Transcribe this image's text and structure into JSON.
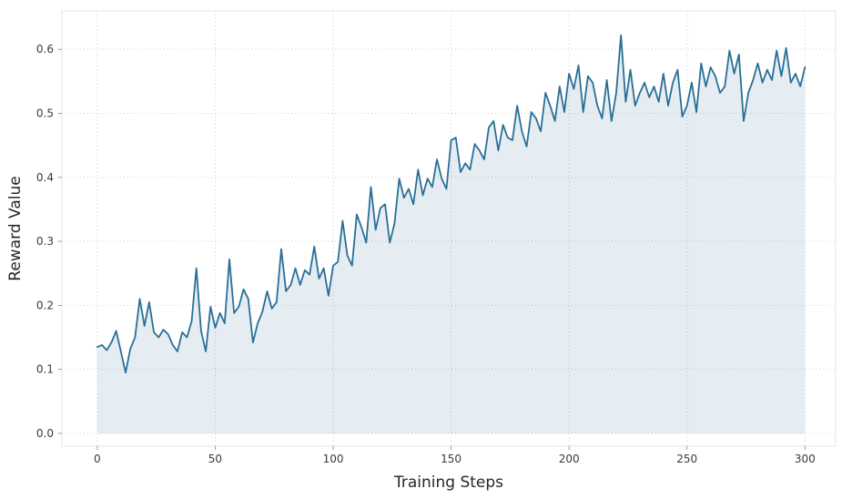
{
  "chart_data": {
    "type": "line",
    "title": "",
    "xlabel": "Training Steps",
    "ylabel": "Reward Value",
    "legend": null,
    "grid": true,
    "grid_style": "dotted",
    "line_color": "#2a6f97",
    "fill_color": "#2a6f97",
    "fill_opacity": 0.12,
    "grid_color": "#cfcfcf",
    "border_color": "#e4e4e4",
    "tick_color": "#888888",
    "xlim": [
      -15,
      313
    ],
    "ylim": [
      -0.02,
      0.66
    ],
    "xticks": [
      0,
      50,
      100,
      150,
      200,
      250,
      300
    ],
    "yticks": [
      0.0,
      0.1,
      0.2,
      0.3,
      0.4,
      0.5,
      0.6
    ],
    "fill_baseline": 0.0,
    "x": [
      0,
      2,
      4,
      6,
      8,
      10,
      12,
      14,
      16,
      18,
      20,
      22,
      24,
      26,
      28,
      30,
      32,
      34,
      36,
      38,
      40,
      42,
      44,
      46,
      48,
      50,
      52,
      54,
      56,
      58,
      60,
      62,
      64,
      66,
      68,
      70,
      72,
      74,
      76,
      78,
      80,
      82,
      84,
      86,
      88,
      90,
      92,
      94,
      96,
      98,
      100,
      102,
      104,
      106,
      108,
      110,
      112,
      114,
      116,
      118,
      120,
      122,
      124,
      126,
      128,
      130,
      132,
      134,
      136,
      138,
      140,
      142,
      144,
      146,
      148,
      150,
      152,
      154,
      156,
      158,
      160,
      162,
      164,
      166,
      168,
      170,
      172,
      174,
      176,
      178,
      180,
      182,
      184,
      186,
      188,
      190,
      192,
      194,
      196,
      198,
      200,
      202,
      204,
      206,
      208,
      210,
      212,
      214,
      216,
      218,
      220,
      222,
      224,
      226,
      228,
      230,
      232,
      234,
      236,
      238,
      240,
      242,
      244,
      246,
      248,
      250,
      252,
      254,
      256,
      258,
      260,
      262,
      264,
      266,
      268,
      270,
      272,
      274,
      276,
      278,
      280,
      282,
      284,
      286,
      288,
      290,
      292,
      294,
      296,
      298,
      300
    ],
    "y": [
      0.135,
      0.138,
      0.13,
      0.142,
      0.16,
      0.128,
      0.095,
      0.132,
      0.15,
      0.21,
      0.168,
      0.205,
      0.158,
      0.15,
      0.162,
      0.155,
      0.138,
      0.128,
      0.158,
      0.15,
      0.175,
      0.258,
      0.16,
      0.128,
      0.198,
      0.165,
      0.188,
      0.172,
      0.272,
      0.188,
      0.198,
      0.225,
      0.21,
      0.142,
      0.172,
      0.19,
      0.222,
      0.195,
      0.205,
      0.288,
      0.222,
      0.232,
      0.258,
      0.232,
      0.255,
      0.248,
      0.292,
      0.242,
      0.258,
      0.215,
      0.262,
      0.268,
      0.332,
      0.278,
      0.262,
      0.342,
      0.322,
      0.298,
      0.385,
      0.318,
      0.352,
      0.358,
      0.298,
      0.328,
      0.398,
      0.368,
      0.382,
      0.358,
      0.412,
      0.372,
      0.398,
      0.385,
      0.428,
      0.398,
      0.382,
      0.458,
      0.462,
      0.408,
      0.422,
      0.412,
      0.452,
      0.442,
      0.428,
      0.478,
      0.488,
      0.442,
      0.482,
      0.462,
      0.458,
      0.512,
      0.472,
      0.448,
      0.502,
      0.492,
      0.472,
      0.532,
      0.512,
      0.488,
      0.542,
      0.502,
      0.562,
      0.538,
      0.575,
      0.502,
      0.558,
      0.548,
      0.512,
      0.492,
      0.552,
      0.488,
      0.532,
      0.622,
      0.518,
      0.568,
      0.512,
      0.532,
      0.548,
      0.525,
      0.542,
      0.518,
      0.562,
      0.512,
      0.548,
      0.568,
      0.495,
      0.512,
      0.548,
      0.502,
      0.578,
      0.542,
      0.572,
      0.558,
      0.532,
      0.542,
      0.598,
      0.562,
      0.592,
      0.488,
      0.532,
      0.552,
      0.578,
      0.548,
      0.568,
      0.552,
      0.598,
      0.558,
      0.602,
      0.548,
      0.562,
      0.542,
      0.572
    ]
  }
}
